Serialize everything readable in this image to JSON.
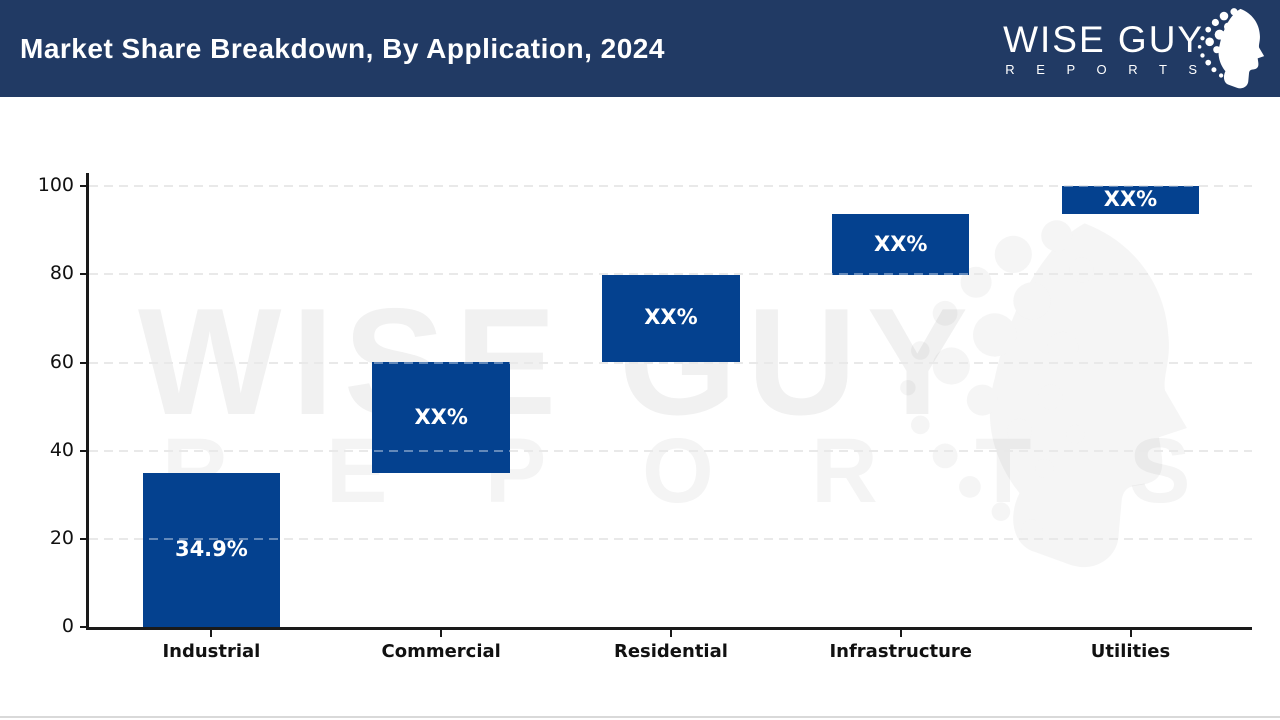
{
  "header": {
    "title": "Market Share Breakdown, By Application, 2024",
    "logo_line1": "WISE GUY",
    "logo_line2": "R E P O R T S",
    "background_color": "#213A64"
  },
  "watermark": {
    "line1": "WISE GUY",
    "line2": "R E P O R T S"
  },
  "chart_data": {
    "type": "bar",
    "subtype": "waterfall",
    "title": "Market Share Breakdown, By Application, 2024",
    "categories": [
      "Industrial",
      "Commercial",
      "Residential",
      "Infrastructure",
      "Utilities"
    ],
    "segments": [
      {
        "category": "Industrial",
        "from": 0,
        "to": 34.9,
        "label": "34.9%"
      },
      {
        "category": "Commercial",
        "from": 34.9,
        "to": 60.1,
        "label": "XX%"
      },
      {
        "category": "Residential",
        "from": 60.1,
        "to": 79.9,
        "label": "XX%"
      },
      {
        "category": "Infrastructure",
        "from": 79.9,
        "to": 93.6,
        "label": "XX%"
      },
      {
        "category": "Utilities",
        "from": 93.6,
        "to": 100,
        "label": "XX%"
      }
    ],
    "xlabel": "",
    "ylabel": "",
    "yticks": [
      0,
      20,
      40,
      60,
      80,
      100
    ],
    "ylim": [
      0,
      103
    ],
    "grid": "horizontal-dashed",
    "legend": "none",
    "bar_color": "#04418F",
    "bar_label_color": "#ffffff"
  }
}
